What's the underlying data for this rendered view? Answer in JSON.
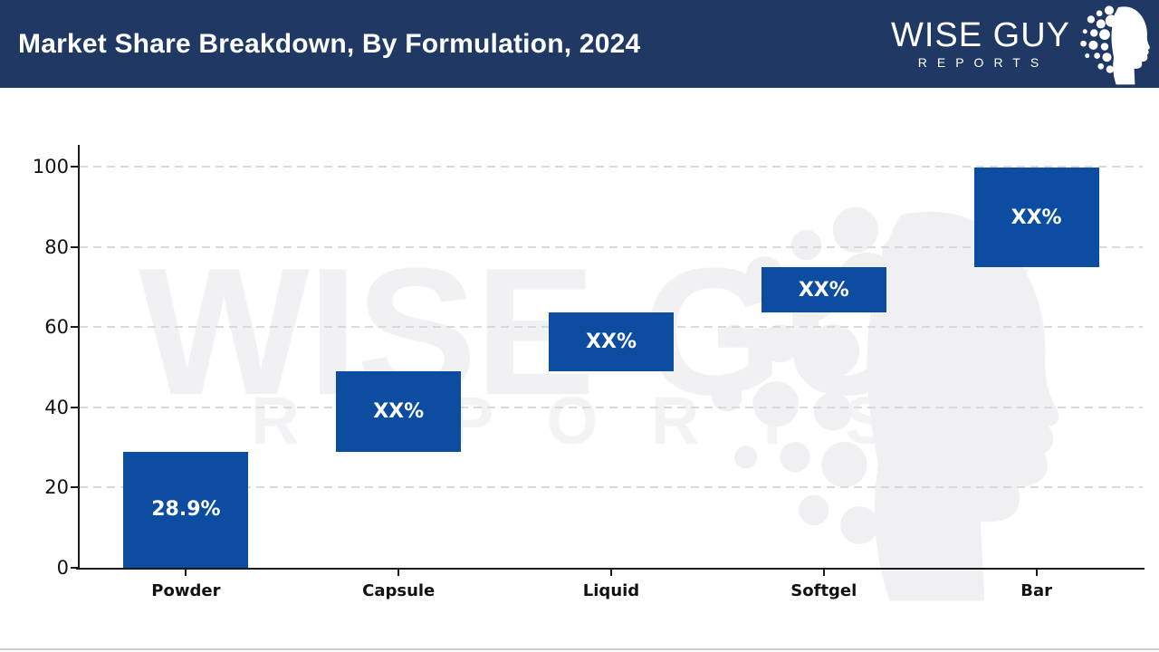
{
  "header": {
    "title": "Market Share Breakdown, By Formulation, 2024",
    "bg_color": "#1f3864",
    "logo": {
      "line1": "WISE GUY",
      "line2": "REPORTS"
    }
  },
  "watermark": {
    "line1": "WISE GUY",
    "line2": "REPORTS"
  },
  "chart_data": {
    "type": "bar",
    "subtype": "waterfall",
    "title": "Market Share Breakdown, By Formulation, 2024",
    "categories": [
      "Powder",
      "Capsule",
      "Liquid",
      "Softgel",
      "Bar"
    ],
    "segments": [
      {
        "category": "Powder",
        "start": 0,
        "end": 28.9,
        "label": "28.9%"
      },
      {
        "category": "Capsule",
        "start": 28.9,
        "end": 48.9,
        "label": "XX%"
      },
      {
        "category": "Liquid",
        "start": 48.9,
        "end": 63.7,
        "label": "XX%"
      },
      {
        "category": "Softgel",
        "start": 63.7,
        "end": 74.9,
        "label": "XX%"
      },
      {
        "category": "Bar",
        "start": 74.9,
        "end": 99.8,
        "label": "XX%"
      }
    ],
    "yticks": [
      0,
      20,
      40,
      60,
      80,
      100
    ],
    "ylim": [
      0,
      105
    ],
    "xlabel": "",
    "ylabel": "",
    "grid": "dashed-horizontal",
    "legend": "none",
    "bar_color": "#0d4da1",
    "bar_label_color": "#ffffff",
    "axis_color": "#1a1a1a",
    "gridline_color": "#dadada"
  }
}
